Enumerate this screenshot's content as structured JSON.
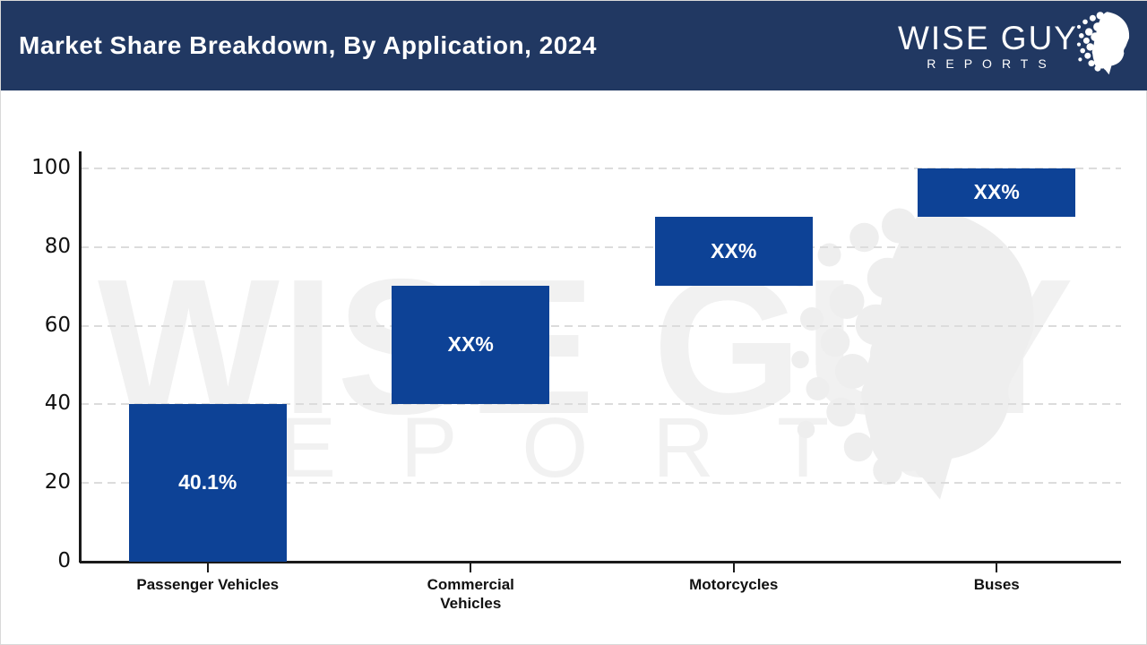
{
  "header": {
    "title": "Market Share Breakdown, By Application, 2024",
    "logo": {
      "line1": "WISE GUY",
      "line2": "REPORTS"
    }
  },
  "watermark": {
    "line1": "WISE GUY",
    "line2": "REPORTS"
  },
  "chart_data": {
    "type": "bar",
    "subtype": "waterfall",
    "title": "Market Share Breakdown, By Application, 2024",
    "categories": [
      "Passenger Vehicles",
      "Commercial\nVehicles",
      "Motorcycles",
      "Buses"
    ],
    "series": [
      {
        "name": "Market Share",
        "segments": [
          {
            "category": "Passenger Vehicles",
            "start": 0,
            "end": 40.1,
            "value": 40.1,
            "label": "40.1%"
          },
          {
            "category": "Commercial Vehicles",
            "start": 40.1,
            "end": 70.2,
            "value": 30.1,
            "label": "XX%"
          },
          {
            "category": "Motorcycles",
            "start": 70.2,
            "end": 87.8,
            "value": 17.6,
            "label": "XX%"
          },
          {
            "category": "Buses",
            "start": 87.8,
            "end": 100,
            "value": 12.2,
            "label": "XX%"
          }
        ]
      }
    ],
    "xlabel": "",
    "ylabel": "",
    "ylim": [
      0,
      100
    ],
    "yticks": [
      0,
      20,
      40,
      60,
      80,
      100
    ],
    "grid": "horizontal-dashed",
    "legend": "none",
    "bar_color": "#0d4296",
    "bar_label_color": "#ffffff"
  },
  "colors": {
    "header_bg": "#213862",
    "bar": "#0d4296",
    "axis": "#1a1a1a",
    "gridline": "#dcdcdc",
    "watermark": "#f1f1f1",
    "page_border": "#d9d9d9"
  }
}
